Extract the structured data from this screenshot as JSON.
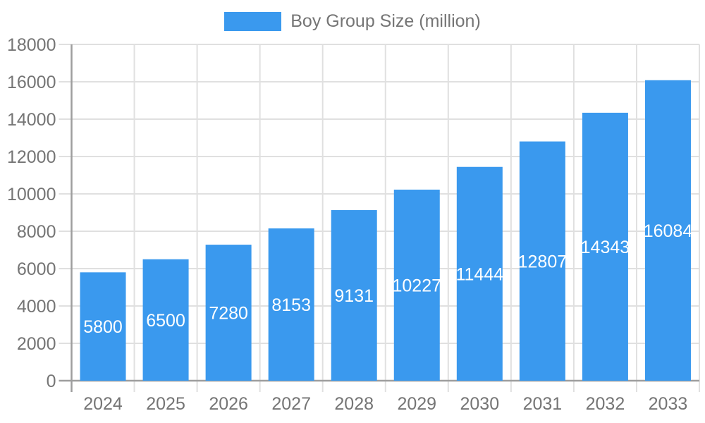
{
  "chart_data": {
    "type": "bar",
    "title": "",
    "series_name": "Boy Group Size (million)",
    "categories": [
      "2024",
      "2025",
      "2026",
      "2027",
      "2028",
      "2029",
      "2030",
      "2031",
      "2032",
      "2033"
    ],
    "values": [
      5800,
      6500,
      7280,
      8153,
      9131,
      10227,
      11444,
      12807,
      14343,
      16084
    ],
    "xlabel": "",
    "ylabel": "",
    "ylim": [
      0,
      18000
    ],
    "yticks": [
      0,
      2000,
      4000,
      6000,
      8000,
      10000,
      12000,
      14000,
      16000,
      18000
    ],
    "grid": true,
    "legend_position": "top",
    "value_labels": "inside-center",
    "colors": {
      "bar": "#3A99EE",
      "grid": "#e0e0e0",
      "axis_line": "#9e9e9e",
      "axis_text": "#757575",
      "value_text": "#ffffff"
    }
  }
}
